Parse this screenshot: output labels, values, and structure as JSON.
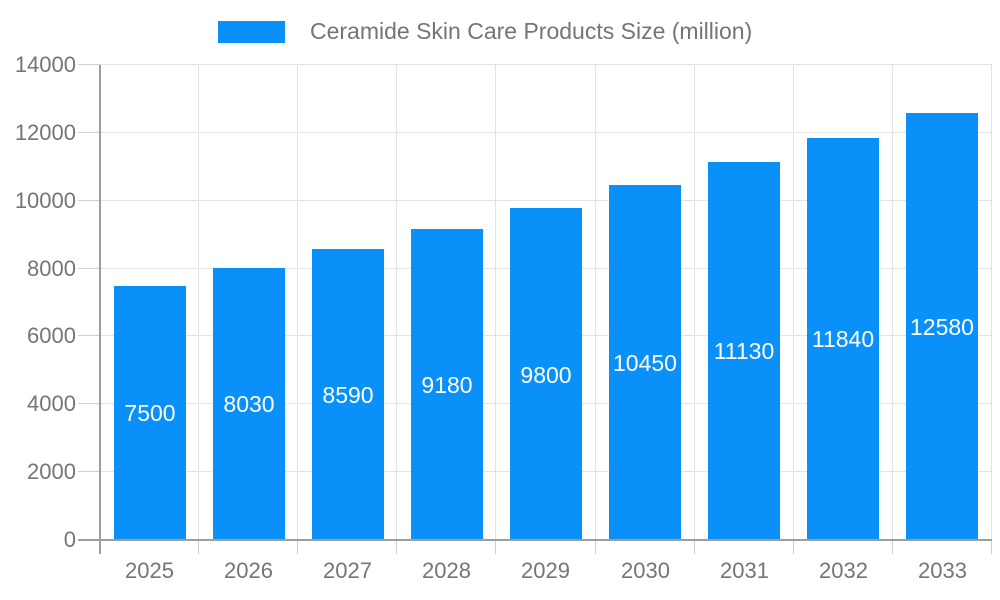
{
  "legend": {
    "label": "Ceramide Skin Care Products Size (million)"
  },
  "chart_data": {
    "type": "bar",
    "title": "Ceramide Skin Care Products Size (million)",
    "series_name": "Ceramide Skin Care Products Size (million)",
    "categories": [
      "2025",
      "2026",
      "2027",
      "2028",
      "2029",
      "2030",
      "2031",
      "2032",
      "2033"
    ],
    "values": [
      7500,
      8030,
      8590,
      9180,
      9800,
      10450,
      11130,
      11840,
      12580
    ],
    "value_labels_shown": [
      "7500",
      "8030",
      "8590",
      "9180",
      "9800",
      "10450",
      "11130",
      "11840",
      "12580"
    ],
    "xlabel": "",
    "ylabel": "",
    "ylim": [
      0,
      14000
    ],
    "yticks": [
      0,
      2000,
      4000,
      6000,
      8000,
      10000,
      12000,
      14000
    ],
    "grid": true,
    "legend_position": "top",
    "value_label_placement": "inside-center",
    "colors": {
      "bar": "#0a90f9",
      "tick_label": "#757575",
      "legend_label": "#757575",
      "value_label": "#ffffff",
      "axis": "#9e9e9e",
      "gridline": "#e3e3e3",
      "tick_mark": "#cfcfcf",
      "background": "#ffffff"
    }
  }
}
